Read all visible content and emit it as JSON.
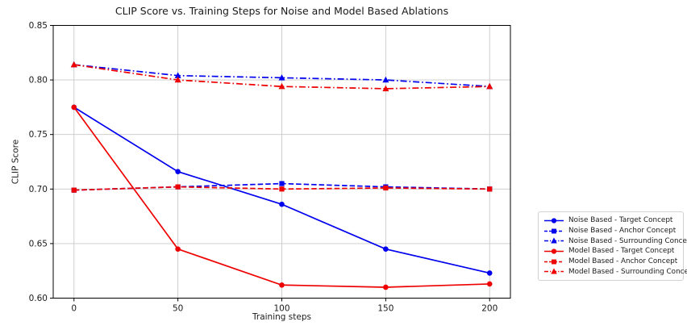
{
  "figure": {
    "title": "CLIP Score vs. Training Steps for Noise and Model Based Ablations",
    "xlabel": "Training steps",
    "ylabel": "CLIP Score"
  },
  "chart_data": {
    "type": "line",
    "title": "CLIP Score vs. Training Steps for Noise and Model Based Ablations",
    "xlabel": "Training steps",
    "ylabel": "CLIP Score",
    "x": [
      0,
      50,
      100,
      150,
      200
    ],
    "xticks": [
      0,
      50,
      100,
      150,
      200
    ],
    "yticks": [
      0.6,
      0.65,
      0.7,
      0.75,
      0.8,
      0.85
    ],
    "xlim": [
      -10,
      210
    ],
    "ylim": [
      0.6,
      0.85
    ],
    "grid": true,
    "legend_position": "outside-right",
    "colors": {
      "noise_based": "#0000ee",
      "model_based": "#ee0000",
      "grid": "#c9c9c9",
      "spine": "#000000"
    },
    "series": [
      {
        "name": "Noise Based - Target Concept",
        "color": "#0000ee",
        "linestyle": "solid",
        "marker": "circle",
        "values": [
          0.775,
          0.716,
          0.686,
          0.645,
          0.623
        ]
      },
      {
        "name": "Noise Based - Anchor Concept",
        "color": "#0000ee",
        "linestyle": "dashed",
        "marker": "square",
        "values": [
          0.699,
          0.702,
          0.705,
          0.702,
          0.7
        ]
      },
      {
        "name": "Noise Based - Surrounding Concept",
        "color": "#0000ee",
        "linestyle": "dashdot",
        "marker": "triangle",
        "values": [
          0.814,
          0.804,
          0.802,
          0.8,
          0.794
        ]
      },
      {
        "name": "Model Based - Target Concept",
        "color": "#ee0000",
        "linestyle": "solid",
        "marker": "circle",
        "values": [
          0.775,
          0.645,
          0.612,
          0.61,
          0.613
        ]
      },
      {
        "name": "Model Based - Anchor Concept",
        "color": "#ee0000",
        "linestyle": "dashed",
        "marker": "square",
        "values": [
          0.699,
          0.702,
          0.7,
          0.701,
          0.7
        ]
      },
      {
        "name": "Model Based - Surrounding Concept",
        "color": "#ee0000",
        "linestyle": "dashdot",
        "marker": "triangle",
        "values": [
          0.814,
          0.8,
          0.794,
          0.792,
          0.794
        ]
      }
    ]
  }
}
